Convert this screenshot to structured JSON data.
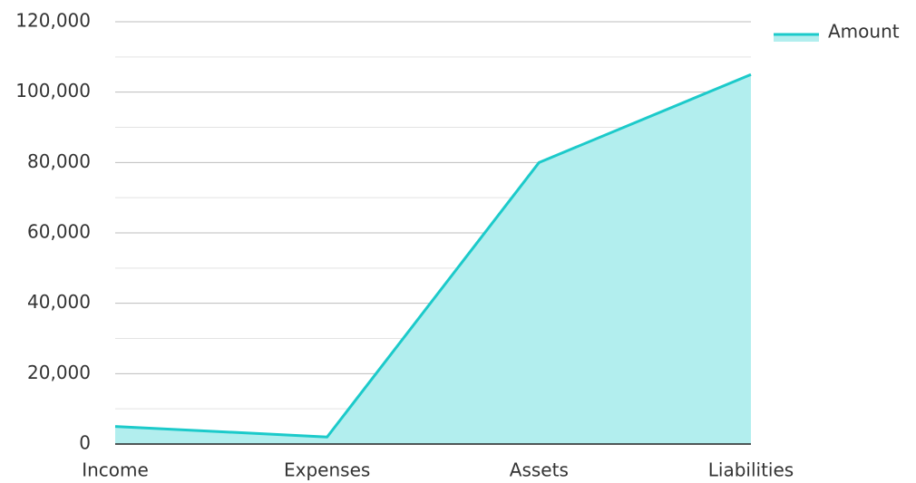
{
  "chart_data": {
    "type": "area",
    "categories": [
      "Income",
      "Expenses",
      "Assets",
      "Liabilities"
    ],
    "series": [
      {
        "name": "Amount",
        "color": "#1ccaca",
        "fill": "#b2eeee",
        "values": [
          5000,
          2000,
          80000,
          105000
        ]
      }
    ],
    "ylim": [
      0,
      120000
    ],
    "yticks": [
      0,
      {
        "value": 20000,
        "label": "20,000"
      },
      {
        "value": 40000,
        "label": "40,000"
      },
      {
        "value": 60000,
        "label": "60,000"
      },
      {
        "value": 80000,
        "label": "80,000"
      },
      {
        "value": 100000,
        "label": "100,000"
      },
      {
        "value": 120000,
        "label": "120,000"
      }
    ],
    "grid": true,
    "minor_grid": true,
    "legend": "top-right"
  }
}
